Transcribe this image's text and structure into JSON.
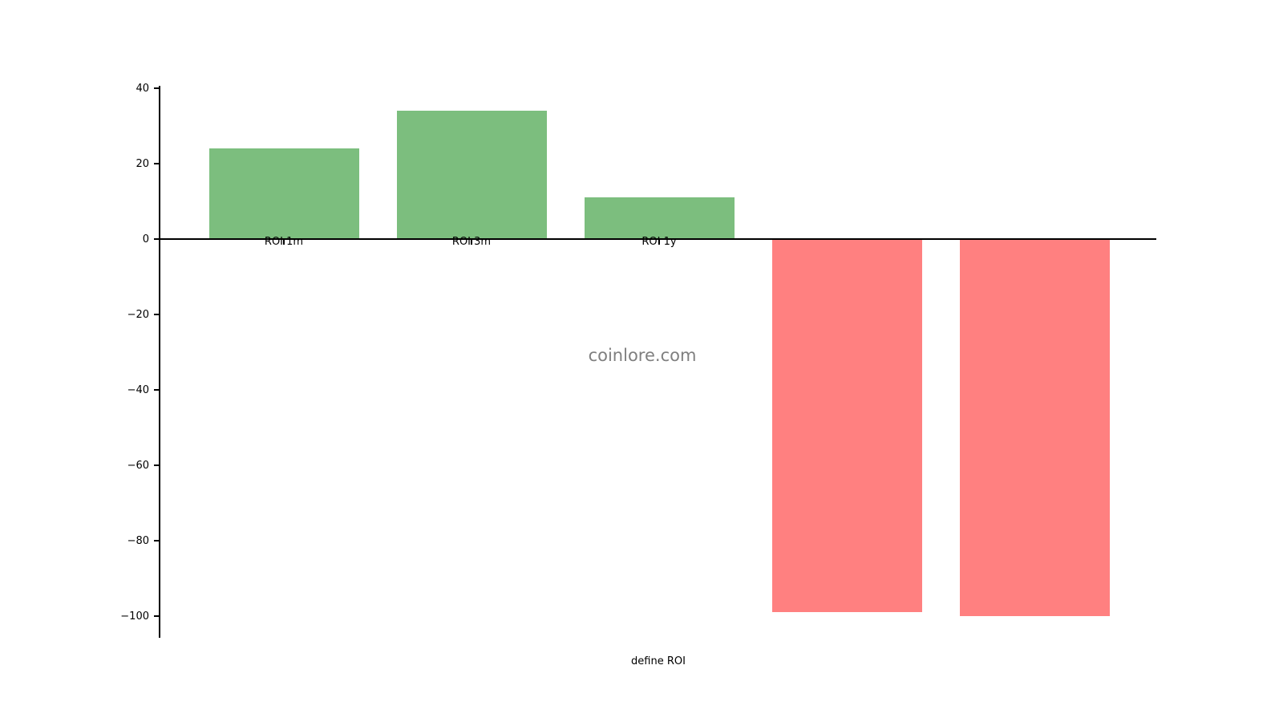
{
  "chart_data": {
    "type": "bar",
    "categories": [
      "ROI 1m",
      "ROI 3m",
      "ROI 1y",
      "",
      ""
    ],
    "values": [
      24,
      34,
      11,
      -99,
      -100
    ],
    "title": "",
    "xlabel": "define ROI",
    "ylabel": "",
    "ylim": [
      -110,
      45
    ],
    "yticks": [
      40,
      20,
      0,
      -20,
      -40,
      -60,
      -80,
      -100
    ],
    "ytick_labels": [
      "40",
      "20",
      "0",
      "−20",
      "−40",
      "−60",
      "−80",
      "−100"
    ],
    "grid": false,
    "legend": null,
    "positive_color": "#7cbe7e",
    "negative_color": "#ff8080",
    "axis_color": "#000000",
    "watermark": "coinlore.com",
    "watermark_color": "#7f7f7f"
  }
}
